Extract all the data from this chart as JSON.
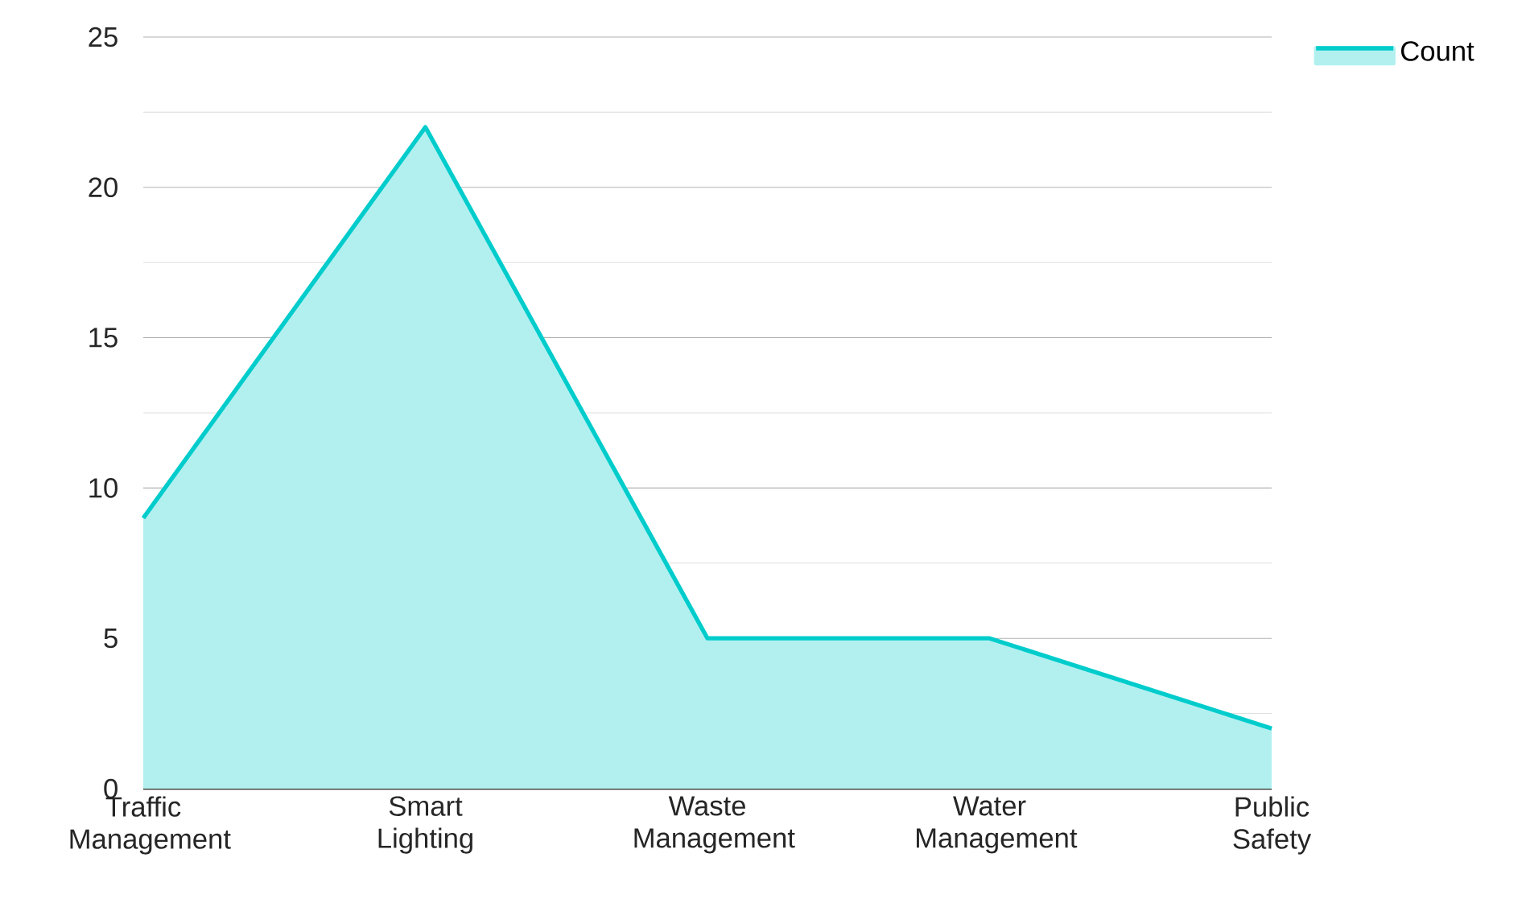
{
  "chart_data": {
    "type": "area",
    "categories": [
      "Traffic Management",
      "Smart Lighting",
      "Waste Management",
      "Water Management",
      "Public Safety"
    ],
    "series": [
      {
        "name": "Count",
        "color": "#00cccc",
        "values": [
          9,
          22,
          5,
          5,
          2
        ]
      }
    ],
    "ylim": [
      0,
      25
    ],
    "yticks": [
      0,
      5,
      10,
      15,
      20,
      25
    ],
    "grid": "y",
    "legend": "top right"
  }
}
